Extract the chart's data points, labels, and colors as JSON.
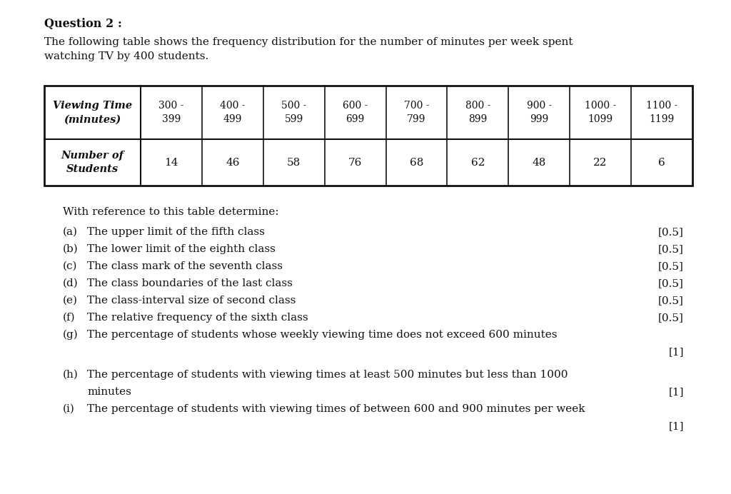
{
  "question_label": "Question 2 :",
  "intro_text": "The following table shows the frequency distribution for the number of minutes per week spent\nwatching TV by 400 students.",
  "table_header_row1": [
    "Viewing Time\n(minutes)",
    "300 -\n399",
    "400 -\n499",
    "500 -\n599",
    "600 -\n699",
    "700 -\n799",
    "800 -\n899",
    "900 -\n999",
    "1000 -\n1099",
    "1100 -\n1199"
  ],
  "table_row2_label": "Number of\nStudents",
  "table_row2_values": [
    14,
    46,
    58,
    76,
    68,
    62,
    48,
    22,
    6
  ],
  "questions": [
    {
      "label": "(a)",
      "text": "The upper limit of the fifth class",
      "marks": "[0.5]",
      "marks_sameline": true
    },
    {
      "label": "(b)",
      "text": "The lower limit of the eighth class",
      "marks": "[0.5]",
      "marks_sameline": true
    },
    {
      "label": "(c)",
      "text": "The class mark of the seventh class",
      "marks": "[0.5]",
      "marks_sameline": true
    },
    {
      "label": "(d)",
      "text": "The class boundaries of the last class",
      "marks": "[0.5]",
      "marks_sameline": true
    },
    {
      "label": "(e)",
      "text": "The class-interval size of second class",
      "marks": "[0.5]",
      "marks_sameline": true
    },
    {
      "label": "(f)",
      "text": "The relative frequency of the sixth class",
      "marks": "[0.5]",
      "marks_sameline": true
    },
    {
      "label": "(g)",
      "text": "The percentage of students whose weekly viewing time does not exceed 600 minutes",
      "marks": "[1]",
      "marks_sameline": false,
      "extra_lines": 1
    },
    {
      "label": "(h)",
      "text": "The percentage of students with viewing times at least 500 minutes but less than 1000",
      "text2": "minutes",
      "marks": "[1]",
      "marks_sameline": false,
      "extra_lines": 0
    },
    {
      "label": "(i)",
      "text": "The percentage of students with viewing times of between 600 and 900 minutes per week",
      "marks": "[1]",
      "marks_sameline": false,
      "extra_lines": 1
    }
  ],
  "with_ref_text": "With reference to this table determine:",
  "bg_color": "#ffffff",
  "table_border_color": "#111111",
  "font_color": "#111111"
}
